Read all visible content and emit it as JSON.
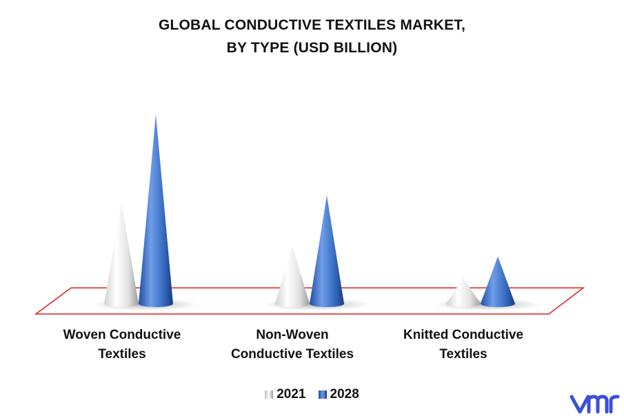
{
  "title_lines": [
    "GLOBAL CONDUCTIVE TEXTILES MARKET,",
    "BY TYPE (USD BILLION)"
  ],
  "colors": {
    "series_2021": "#e8e8e8",
    "series_2028": "#3a6fc4",
    "floor_border": "#e11d1d",
    "logo": "#3b4fd8"
  },
  "logo_icon": "vmr-logo",
  "chart_data": {
    "type": "bar",
    "style": "3d-cone",
    "title": "GLOBAL CONDUCTIVE TEXTILES MARKET, BY TYPE (USD BILLION)",
    "categories": [
      [
        "Woven Conductive",
        "Textiles"
      ],
      [
        "Non-Woven",
        "Conductive Textiles"
      ],
      [
        "Knitted Conductive",
        "Textiles"
      ]
    ],
    "series": [
      {
        "name": "2021",
        "values": [
          1.5,
          0.85,
          0.38
        ]
      },
      {
        "name": "2028",
        "values": [
          2.8,
          1.6,
          0.7
        ]
      }
    ],
    "ylim": [
      0,
      2.8
    ],
    "grid": false,
    "legend": "bottom-center"
  }
}
